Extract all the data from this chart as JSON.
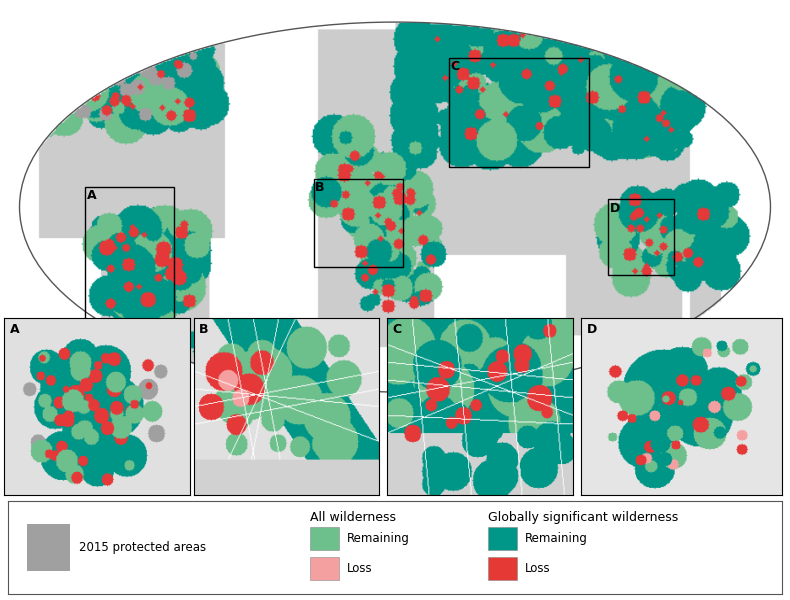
{
  "figure_bg": "#ffffff",
  "ocean_color": "#ffffff",
  "land_color": "#c8c8c8",
  "colors": {
    "protected_areas": "#a0a0a0",
    "all_wilderness_remaining": "#6dbf8b",
    "all_wilderness_loss": "#f4a0a0",
    "glob_wilderness_remaining": "#009688",
    "glob_wilderness_loss": "#e53935"
  },
  "legend": {
    "protected_areas_label": "2015 protected areas",
    "all_wilderness_title": "All wilderness",
    "all_remaining_label": "Remaining",
    "all_loss_label": "Loss",
    "glob_wilderness_title": "Globally significant wilderness",
    "glob_remaining_label": "Remaining",
    "glob_loss_label": "Loss"
  },
  "inset_labels": [
    "A",
    "B",
    "C",
    "D"
  ],
  "box_color": "#000000",
  "label_fontsize": 9,
  "legend_fontsize": 8.5,
  "legend_title_fontsize": 9
}
